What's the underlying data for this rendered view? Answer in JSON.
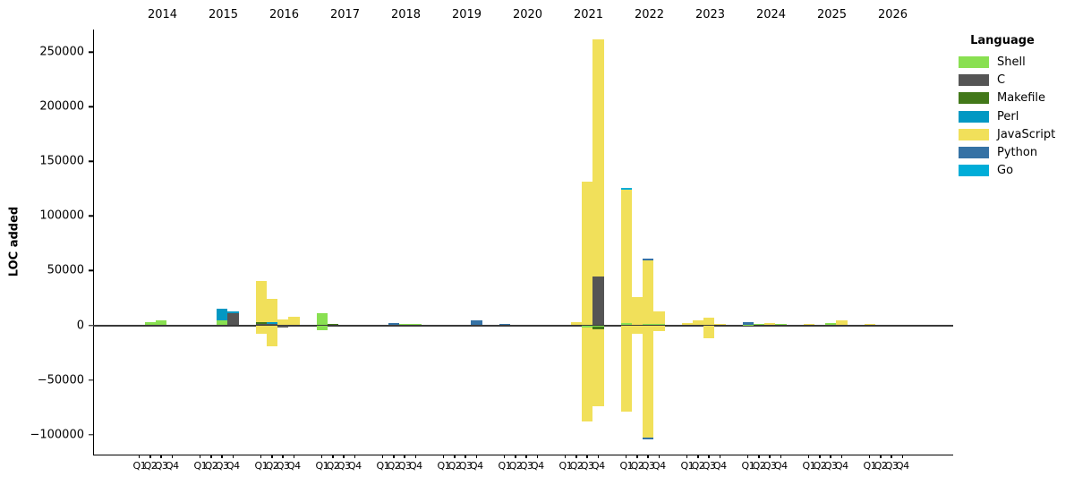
{
  "chart_data": {
    "type": "bar",
    "stacked": true,
    "title": "",
    "xlabel": "",
    "ylabel": "LOC added",
    "grid": false,
    "ylim": [
      -110000,
      272000
    ],
    "y_ticks": [
      250000,
      200000,
      150000,
      100000,
      50000,
      0,
      -50000,
      -100000
    ],
    "years": [
      "2014",
      "2015",
      "2016",
      "2017",
      "2018",
      "2019",
      "2020",
      "2021",
      "2022",
      "2023",
      "2024",
      "2025",
      "2026"
    ],
    "quarter_labels": [
      "Q1",
      "Q2",
      "Q3",
      "Q4"
    ],
    "legend": {
      "title": "Language",
      "position": "right",
      "entries": [
        {
          "label": "Shell",
          "color": "#89e051"
        },
        {
          "label": "C",
          "color": "#555555"
        },
        {
          "label": "Makefile",
          "color": "#427819"
        },
        {
          "label": "Perl",
          "color": "#0298c3"
        },
        {
          "label": "JavaScript",
          "color": "#f1e05a"
        },
        {
          "label": "Python",
          "color": "#3572a5"
        },
        {
          "label": "Go",
          "color": "#00add8"
        }
      ]
    },
    "bars": [
      {
        "year": "2014",
        "q": "Q2",
        "pos": [
          [
            "Shell",
            2800
          ]
        ],
        "neg": []
      },
      {
        "year": "2014",
        "q": "Q3",
        "pos": [
          [
            "Shell",
            4300
          ]
        ],
        "neg": []
      },
      {
        "year": "2015",
        "q": "Q3",
        "pos": [
          [
            "Shell",
            4900
          ],
          [
            "Perl",
            10400
          ]
        ],
        "neg": []
      },
      {
        "year": "2015",
        "q": "Q4",
        "pos": [
          [
            "C",
            10700
          ],
          [
            "Perl",
            1600
          ]
        ],
        "neg": []
      },
      {
        "year": "2016",
        "q": "Q1",
        "pos": [
          [
            "C",
            1300
          ],
          [
            "Makefile",
            1600
          ],
          [
            "JavaScript",
            37800
          ]
        ],
        "neg": [
          [
            "JavaScript",
            -7500
          ]
        ]
      },
      {
        "year": "2016",
        "q": "Q2",
        "pos": [
          [
            "C",
            1300
          ],
          [
            "Perl",
            1600
          ],
          [
            "JavaScript",
            21400
          ]
        ],
        "neg": [
          [
            "JavaScript",
            -18900
          ]
        ]
      },
      {
        "year": "2016",
        "q": "Q3",
        "pos": [
          [
            "JavaScript",
            5700
          ]
        ],
        "neg": [
          [
            "C",
            -2100
          ]
        ]
      },
      {
        "year": "2016",
        "q": "Q4",
        "pos": [
          [
            "JavaScript",
            7400
          ]
        ],
        "neg": []
      },
      {
        "year": "2017",
        "q": "Q1",
        "pos": [
          [
            "Shell",
            10700
          ]
        ],
        "neg": [
          [
            "Shell",
            -4300
          ]
        ]
      },
      {
        "year": "2017",
        "q": "Q2",
        "pos": [
          [
            "Makefile",
            1500
          ]
        ],
        "neg": []
      },
      {
        "year": "2018",
        "q": "Q2",
        "pos": [
          [
            "Python",
            1700
          ]
        ],
        "neg": []
      },
      {
        "year": "2018",
        "q": "Q3",
        "pos": [
          [
            "Shell",
            1200
          ]
        ],
        "neg": []
      },
      {
        "year": "2018",
        "q": "Q4",
        "pos": [
          [
            "Shell",
            1200
          ]
        ],
        "neg": []
      },
      {
        "year": "2019",
        "q": "Q4",
        "pos": [
          [
            "Python",
            4100
          ]
        ],
        "neg": []
      },
      {
        "year": "2020",
        "q": "Q1",
        "pos": [
          [
            "Python",
            1200
          ]
        ],
        "neg": []
      },
      {
        "year": "2021",
        "q": "Q2",
        "pos": [
          [
            "JavaScript",
            2500
          ]
        ],
        "neg": []
      },
      {
        "year": "2021",
        "q": "Q3",
        "pos": [
          [
            "JavaScript",
            131800
          ]
        ],
        "neg": [
          [
            "Shell",
            -2000
          ],
          [
            "JavaScript",
            -86300
          ]
        ]
      },
      {
        "year": "2021",
        "q": "Q4",
        "pos": [
          [
            "C",
            44300
          ],
          [
            "JavaScript",
            217400
          ]
        ],
        "neg": [
          [
            "Shell",
            -1600
          ],
          [
            "Makefile",
            -1700
          ],
          [
            "JavaScript",
            -71200
          ]
        ]
      },
      {
        "year": "2022",
        "q": "Q1",
        "pos": [
          [
            "Shell",
            2100
          ],
          [
            "JavaScript",
            121900
          ],
          [
            "Go",
            1800
          ]
        ],
        "neg": [
          [
            "JavaScript",
            -79400
          ]
        ]
      },
      {
        "year": "2022",
        "q": "Q2",
        "pos": [
          [
            "JavaScript",
            25900
          ]
        ],
        "neg": [
          [
            "JavaScript",
            -7600
          ]
        ]
      },
      {
        "year": "2022",
        "q": "Q3",
        "pos": [
          [
            "Shell",
            1600
          ],
          [
            "JavaScript",
            57600
          ],
          [
            "Python",
            2000
          ]
        ],
        "neg": [
          [
            "JavaScript",
            -102500
          ],
          [
            "Python",
            -2000
          ]
        ]
      },
      {
        "year": "2022",
        "q": "Q4",
        "pos": [
          [
            "Shell",
            1300
          ],
          [
            "JavaScript",
            11500
          ]
        ],
        "neg": [
          [
            "JavaScript",
            -5600
          ]
        ]
      },
      {
        "year": "2023",
        "q": "Q1",
        "pos": [
          [
            "JavaScript",
            2300
          ]
        ],
        "neg": []
      },
      {
        "year": "2023",
        "q": "Q2",
        "pos": [
          [
            "JavaScript",
            4300
          ]
        ],
        "neg": []
      },
      {
        "year": "2023",
        "q": "Q3",
        "pos": [
          [
            "JavaScript",
            6700
          ]
        ],
        "neg": [
          [
            "JavaScript",
            -12100
          ]
        ]
      },
      {
        "year": "2023",
        "q": "Q4",
        "pos": [
          [
            "JavaScript",
            900
          ]
        ],
        "neg": []
      },
      {
        "year": "2024",
        "q": "Q1",
        "pos": [
          [
            "Shell",
            800
          ],
          [
            "Python",
            1700
          ]
        ],
        "neg": []
      },
      {
        "year": "2024",
        "q": "Q2",
        "pos": [
          [
            "Shell",
            1100
          ]
        ],
        "neg": []
      },
      {
        "year": "2024",
        "q": "Q3",
        "pos": [
          [
            "JavaScript",
            2400
          ]
        ],
        "neg": []
      },
      {
        "year": "2024",
        "q": "Q4",
        "pos": [
          [
            "Shell",
            1100
          ]
        ],
        "neg": []
      },
      {
        "year": "2025",
        "q": "Q1",
        "pos": [
          [
            "JavaScript",
            1600
          ]
        ],
        "neg": []
      },
      {
        "year": "2025",
        "q": "Q3",
        "pos": [
          [
            "Shell",
            1900
          ]
        ],
        "neg": []
      },
      {
        "year": "2025",
        "q": "Q4",
        "pos": [
          [
            "JavaScript",
            4100
          ]
        ],
        "neg": []
      },
      {
        "year": "2026",
        "q": "Q1",
        "pos": [
          [
            "JavaScript",
            1500
          ]
        ],
        "neg": []
      }
    ]
  }
}
